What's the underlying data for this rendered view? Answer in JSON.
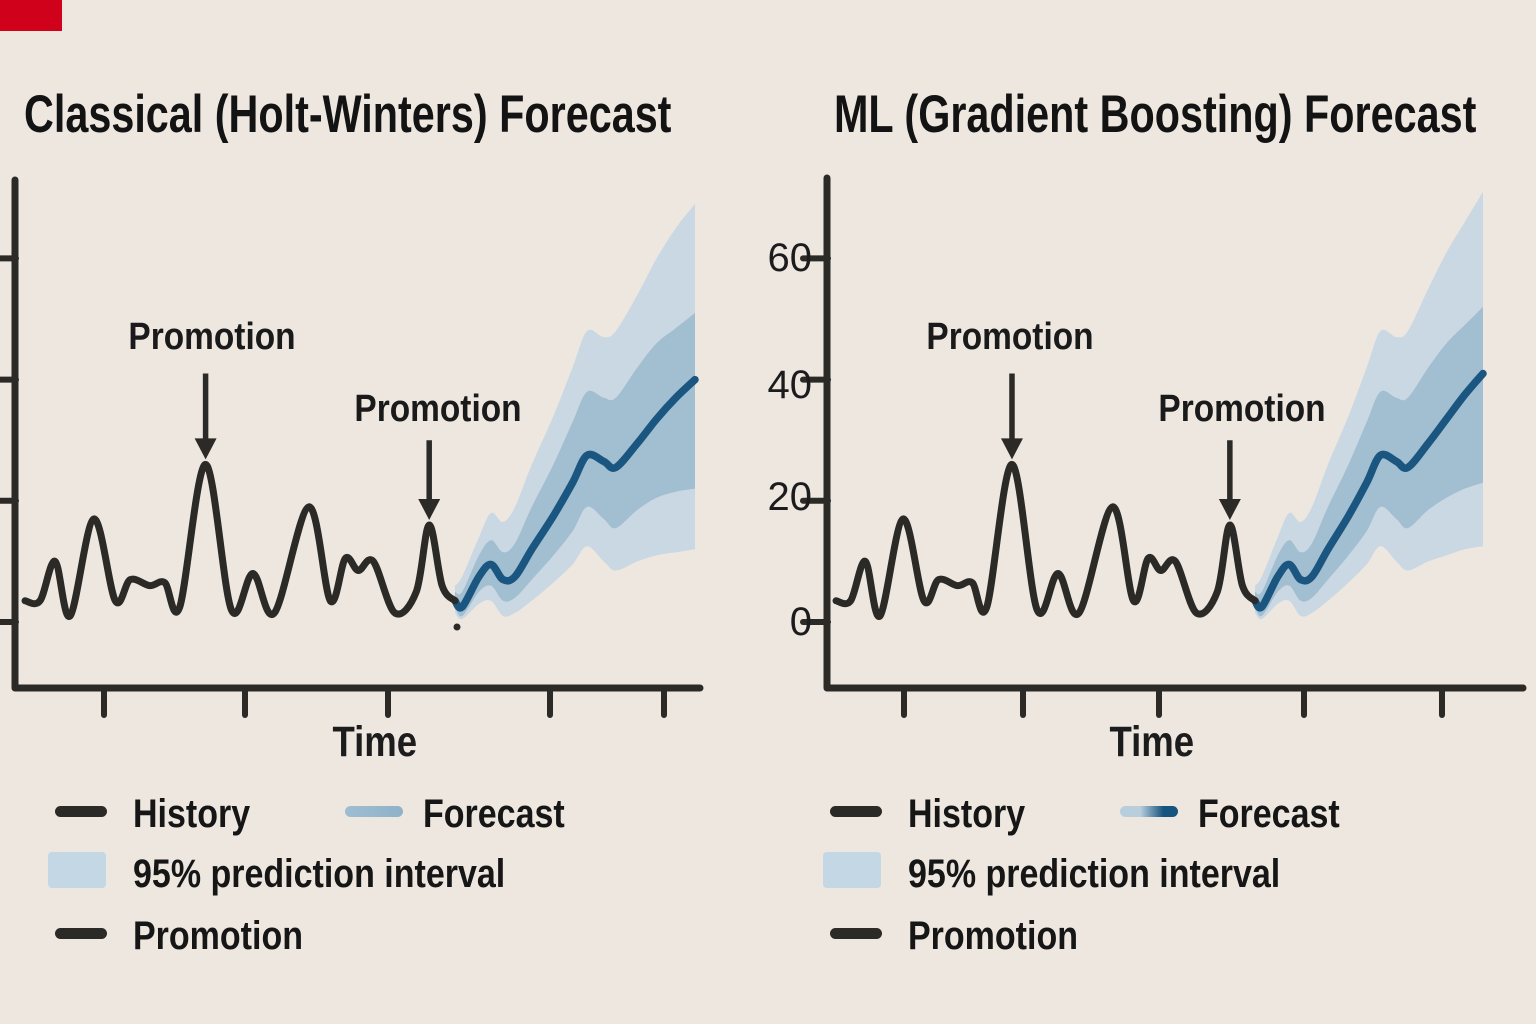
{
  "colors": {
    "background": "#EDE7E0",
    "history": "#2C2A26",
    "forecast_line": "#1A567F",
    "band_inner": "#A2BED1",
    "band_outer": "#C9D8E2",
    "interval_swatch": "#C4D7E4",
    "red_marker": "#D0021B"
  },
  "chart_data": [
    {
      "type": "line",
      "title": "Classical (Holt-Winters) Forecast",
      "xlabel": "Time",
      "ylabel": "",
      "ylim": [
        0,
        73
      ],
      "ytick_values": [
        60,
        40,
        20,
        0
      ],
      "ytick_labels": [],
      "legend": [
        "History",
        "Forecast",
        "95% prediction interval",
        "Promotion"
      ],
      "history": {
        "x": [
          0,
          3.5,
          7,
          10.5,
          16,
          21,
          24.5,
          29,
          32.5,
          36,
          42,
          48,
          53,
          58,
          66,
          71,
          74.5,
          77.5,
          81,
          86,
          91,
          94,
          97,
          100
        ],
        "values": [
          3.5,
          3.5,
          10,
          1,
          17,
          3.5,
          7,
          6,
          6.5,
          2.5,
          26,
          2,
          8,
          1.5,
          19,
          3.5,
          10.5,
          8.5,
          10,
          1.5,
          5,
          16,
          6,
          3.5
        ]
      },
      "forecast": {
        "x": [
          0,
          3,
          10,
          15,
          20,
          25,
          32,
          41,
          49,
          55,
          62,
          67,
          76,
          84,
          92,
          100
        ],
        "mean": [
          3.5,
          2.5,
          7.5,
          9.5,
          7,
          7.5,
          12,
          17.5,
          23,
          27.5,
          26.5,
          25.5,
          29.5,
          33.5,
          37,
          40
        ],
        "inner_hi": [
          5,
          5,
          11,
          13.5,
          11.5,
          13,
          19,
          26,
          33,
          38,
          37,
          37,
          42,
          46,
          48.5,
          51
        ],
        "inner_lo": [
          2.5,
          1,
          5,
          6,
          3.5,
          4,
          7,
          11,
          15,
          19,
          17,
          15.5,
          18.5,
          20.5,
          21.5,
          22
        ],
        "outer_hi": [
          6,
          7.5,
          14,
          18,
          16.5,
          19,
          26,
          34,
          42,
          48,
          47,
          48,
          54,
          60,
          65,
          69
        ],
        "outer_lo": [
          1.5,
          0.5,
          3,
          3.5,
          1,
          1.5,
          3.5,
          6.5,
          9.5,
          12.5,
          10,
          8.5,
          10,
          11,
          11.5,
          12
        ]
      },
      "annotations": [
        {
          "label": "Promotion",
          "t": 42,
          "arrow_from_v": 41,
          "arrow_to_v": 27.5
        },
        {
          "label": "Promotion",
          "t": 94,
          "arrow_from_v": 30,
          "arrow_to_v": 17.5
        }
      ]
    },
    {
      "type": "line",
      "title": "ML (Gradient Boosting) Forecast",
      "xlabel": "Time",
      "ylabel": "",
      "ylim": [
        0,
        73
      ],
      "ytick_values": [
        60,
        40,
        20,
        0
      ],
      "ytick_labels": [
        "60",
        "40",
        "20",
        "0"
      ],
      "legend": [
        "History",
        "Forecast",
        "95% prediction interval",
        "Promotion"
      ],
      "history": {
        "x": [
          0,
          3.5,
          7,
          10.5,
          16,
          21,
          24.5,
          29,
          32.5,
          36,
          42,
          48,
          53,
          58,
          66,
          71,
          74.5,
          77.5,
          81,
          86,
          91,
          94,
          97,
          100
        ],
        "values": [
          3.5,
          3.5,
          10,
          1,
          17,
          3.5,
          7,
          6,
          6.5,
          2.5,
          26,
          2,
          8,
          1.5,
          19,
          3.5,
          10.5,
          8.5,
          10,
          1.5,
          5,
          16,
          6,
          3.5
        ]
      },
      "forecast": {
        "x": [
          0,
          3,
          10,
          15,
          20,
          25,
          32,
          41,
          49,
          55,
          62,
          67,
          76,
          84,
          92,
          100
        ],
        "mean": [
          3.5,
          2.5,
          7.5,
          9.5,
          7,
          7.5,
          12,
          17.5,
          23,
          27.5,
          26.5,
          25.5,
          29.5,
          33.5,
          37.5,
          41
        ],
        "inner_hi": [
          5,
          5,
          11,
          13.5,
          11.5,
          13,
          19,
          26,
          33,
          38,
          37,
          37,
          42,
          46,
          49,
          52
        ],
        "inner_lo": [
          2.5,
          1,
          5,
          6,
          3.5,
          4,
          7,
          11,
          15,
          19,
          17,
          15.5,
          18.5,
          20.5,
          22,
          23
        ],
        "outer_hi": [
          6,
          7.5,
          14,
          18,
          16.5,
          19,
          26,
          34,
          42,
          48,
          47,
          48,
          55,
          61,
          66,
          71
        ],
        "outer_lo": [
          1.5,
          0.5,
          3,
          3.5,
          1,
          1.5,
          3.5,
          6.5,
          9.5,
          12.5,
          10,
          8.5,
          10,
          11,
          12,
          12.5
        ]
      },
      "annotations": [
        {
          "label": "Promotion",
          "t": 42,
          "arrow_from_v": 41,
          "arrow_to_v": 27.5
        },
        {
          "label": "Promotion",
          "t": 94,
          "arrow_from_v": 30,
          "arrow_to_v": 17.5
        }
      ]
    }
  ]
}
